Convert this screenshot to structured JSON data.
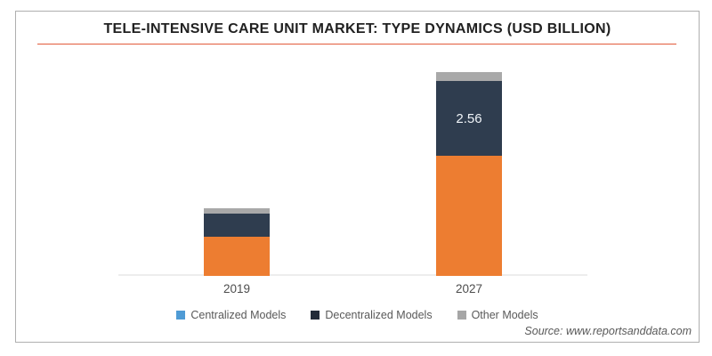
{
  "chart_data": {
    "type": "bar",
    "stacked": true,
    "title": "TELE-INTENSIVE CARE UNIT MARKET: TYPE DYNAMICS (USD BILLION)",
    "categories": [
      "2019",
      "2027"
    ],
    "series": [
      {
        "name": "Centralized Models",
        "values": [
          1.34,
          4.11
        ],
        "bar_color": "#ED7D31",
        "legend_color": "#4F9BD5"
      },
      {
        "name": "Decentralized Models",
        "values": [
          0.79,
          2.56
        ],
        "bar_color": "#2F3D4F",
        "legend_color": "#222B38"
      },
      {
        "name": "Other Models",
        "values": [
          0.18,
          0.3
        ],
        "bar_color": "#A9A9A9",
        "legend_color": "#A6A6A6"
      }
    ],
    "data_labels": [
      {
        "category": "2027",
        "series": "Decentralized Models",
        "text": "2.56"
      }
    ],
    "xlabel": "",
    "ylabel": "",
    "ylim": [
      0,
      7.5
    ],
    "grid": false,
    "legend_position": "bottom",
    "axis_color": "#EDEDED"
  },
  "source": "Source: www.reportsanddata.com",
  "colors": {
    "title_text": "#212121",
    "divider": "#E25B3B",
    "frame_border": "#AFAFAF",
    "tick_text": "#4D4D4D",
    "legend_text": "#595959",
    "data_label_text": "#F0F4F8"
  }
}
